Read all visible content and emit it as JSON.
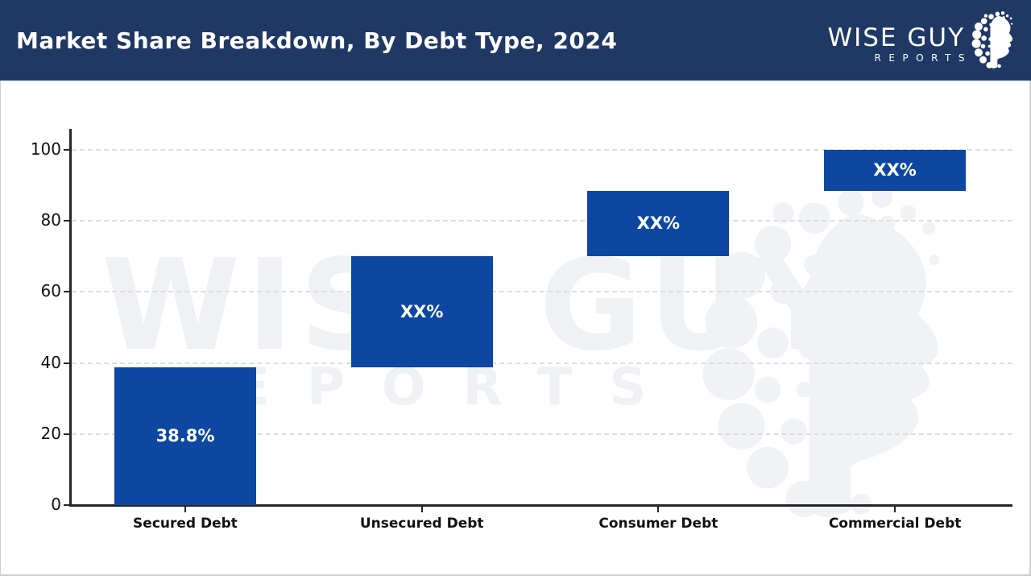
{
  "header": {
    "title": "Market Share Breakdown, By Debt Type, 2024",
    "logo_line1": "WISE GUY",
    "logo_line2": "REPORTS",
    "bg_color": "#1f3864"
  },
  "watermark": {
    "line1": "WISE GUY",
    "line2": "REPORTS"
  },
  "chart_data": {
    "type": "bar",
    "subtype": "waterfall",
    "title": "Market Share Breakdown, By Debt Type, 2024",
    "categories": [
      "Secured Debt",
      "Unsecured Debt",
      "Consumer Debt",
      "Commercial Debt"
    ],
    "segments": [
      {
        "category": "Secured Debt",
        "start": 0,
        "end": 38.8,
        "label": "38.8%"
      },
      {
        "category": "Unsecured Debt",
        "start": 38.8,
        "end": 70.0,
        "label": "XX%"
      },
      {
        "category": "Consumer Debt",
        "start": 70.0,
        "end": 88.5,
        "label": "XX%"
      },
      {
        "category": "Commercial Debt",
        "start": 88.5,
        "end": 100.0,
        "label": "XX%"
      }
    ],
    "yticks": [
      0,
      20,
      40,
      60,
      80,
      100
    ],
    "ylim": [
      0,
      106
    ],
    "xlabel": "",
    "ylabel": "",
    "grid": "horizontal-dashed",
    "legend": "none",
    "bar_color": "#0d47a1",
    "bar_label_color": "#ffffff",
    "axis_color": "#262626",
    "grid_color": "#dcdcdc"
  }
}
